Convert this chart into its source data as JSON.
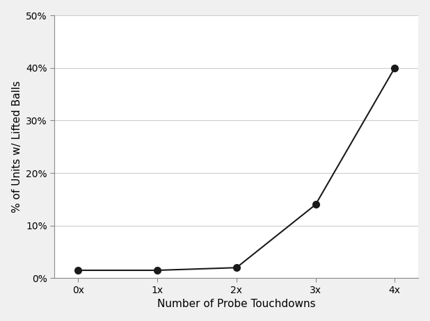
{
  "x_values": [
    0,
    1,
    2,
    3,
    4
  ],
  "y_values": [
    0.015,
    0.015,
    0.02,
    0.14,
    0.4
  ],
  "x_tick_labels": [
    "0x",
    "1x",
    "2x",
    "3x",
    "4x"
  ],
  "xlabel": "Number of Probe Touchdowns",
  "ylabel": "% of Units w/ Lifted Balls",
  "ylim": [
    0,
    0.5
  ],
  "xlim": [
    -0.3,
    4.3
  ],
  "yticks": [
    0.0,
    0.1,
    0.2,
    0.3,
    0.4,
    0.5
  ],
  "ytick_labels": [
    "0%",
    "10%",
    "20%",
    "30%",
    "40%",
    "50%"
  ],
  "line_color": "#1a1a1a",
  "marker": "o",
  "marker_color": "#1a1a1a",
  "marker_size": 7,
  "line_width": 1.5,
  "grid_color": "#cccccc",
  "background_color": "#ffffff",
  "fig_background": "#f0f0f0",
  "title_fontsize": 11,
  "label_fontsize": 11,
  "tick_fontsize": 10
}
